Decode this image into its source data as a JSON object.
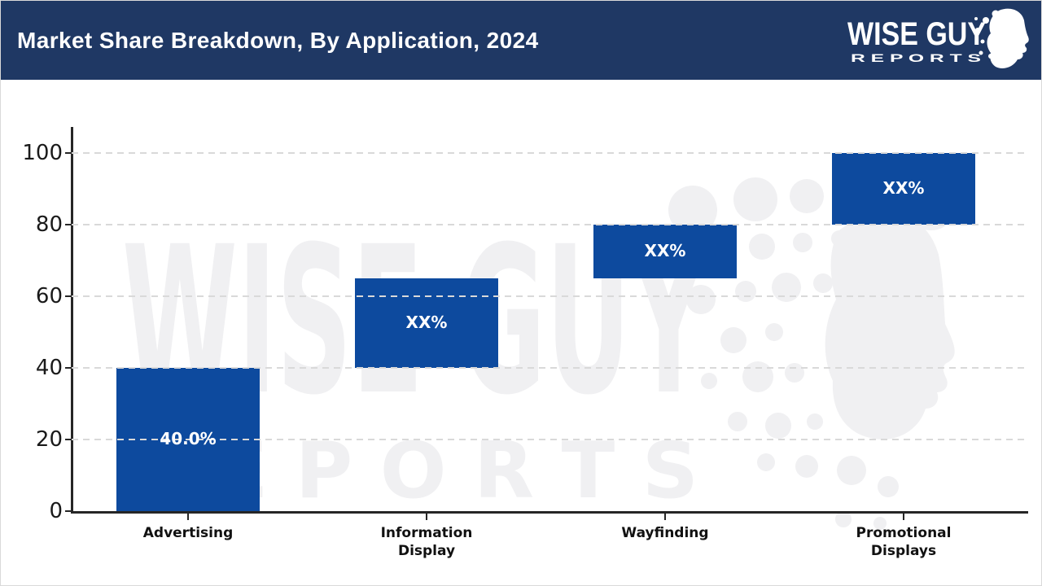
{
  "header": {
    "title": "Market Share Breakdown, By Application, 2024",
    "logo": {
      "primary": "WISE GUY",
      "secondary": "R E P O R T S"
    }
  },
  "watermark": {
    "primary": "WISE GUY",
    "secondary": "R E P O R T S"
  },
  "colors": {
    "header_bg": "#1f3864",
    "bar": "#0d4a9e",
    "bar_label": "#ffffff",
    "gridline": "#d9d9d9",
    "axis": "#262626",
    "watermark": "#f0f0f2"
  },
  "chart_data": {
    "type": "bar",
    "variant": "waterfall",
    "title": "Market Share Breakdown, By Application, 2024",
    "categories": [
      "Advertising",
      "Information Display",
      "Wayfinding",
      "Promotional Displays"
    ],
    "segments": [
      {
        "category": "Advertising",
        "start": 0,
        "end": 40,
        "label": "40.0%"
      },
      {
        "category": "Information Display",
        "start": 40,
        "end": 65,
        "label": "XX%"
      },
      {
        "category": "Wayfinding",
        "start": 65,
        "end": 80,
        "label": "XX%"
      },
      {
        "category": "Promotional Displays",
        "start": 80,
        "end": 100,
        "label": "XX%"
      }
    ],
    "xlabel": "",
    "ylabel": "",
    "ylim": [
      0,
      100
    ],
    "yticks": [
      0,
      20,
      40,
      60,
      80,
      100
    ],
    "grid": "horizontal-dashed-over-bars",
    "legend": "none",
    "bar_color": "#0d4a9e"
  }
}
